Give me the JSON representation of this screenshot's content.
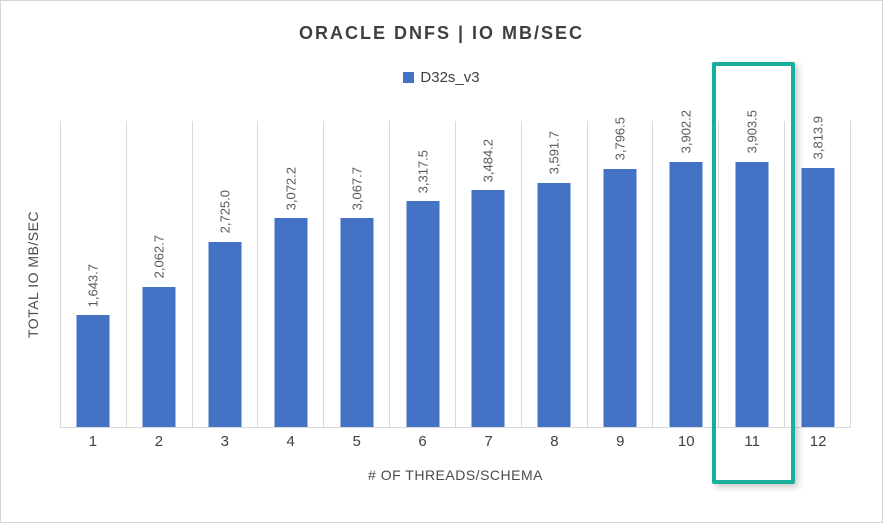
{
  "chart": {
    "title": "ORACLE DNFS | IO MB/SEC",
    "legend": {
      "series_label": "D32s_v3",
      "swatch_color": "#4472C4"
    },
    "x_axis_title": "# OF THREADS/SCHEMA",
    "y_axis_title": "TOTAL IO MB/SEC",
    "highlight_color": "#1AAE9C"
  },
  "chart_data": {
    "type": "bar",
    "title": "ORACLE DNFS | IO MB/SEC",
    "categories": [
      "1",
      "2",
      "3",
      "4",
      "5",
      "6",
      "7",
      "8",
      "9",
      "10",
      "11",
      "12"
    ],
    "series": [
      {
        "name": "D32s_v3",
        "values": [
          1643.7,
          2062.7,
          2725.0,
          3072.2,
          3067.7,
          3317.5,
          3484.2,
          3591.7,
          3796.5,
          3902.2,
          3903.5,
          3813.9
        ],
        "color": "#4472C4"
      }
    ],
    "data_labels": [
      "1,643.7",
      "2,062.7",
      "2,725.0",
      "3,072.2",
      "3,067.7",
      "3,317.5",
      "3,484.2",
      "3,591.7",
      "3,796.5",
      "3,902.2",
      "3,903.5",
      "3,813.9"
    ],
    "data_label_orientation": "rotated-90",
    "xlabel": "# OF THREADS/SCHEMA",
    "ylabel": "TOTAL IO MB/SEC",
    "ylim": [
      0,
      4500
    ],
    "grid": "vertical-category-separators-only",
    "legend_position": "top-center",
    "annotations": [
      {
        "type": "highlight-box",
        "category": "11",
        "color": "#1AAE9C",
        "note": "teal rectangle outlining bar 11 and its tick label"
      }
    ]
  }
}
